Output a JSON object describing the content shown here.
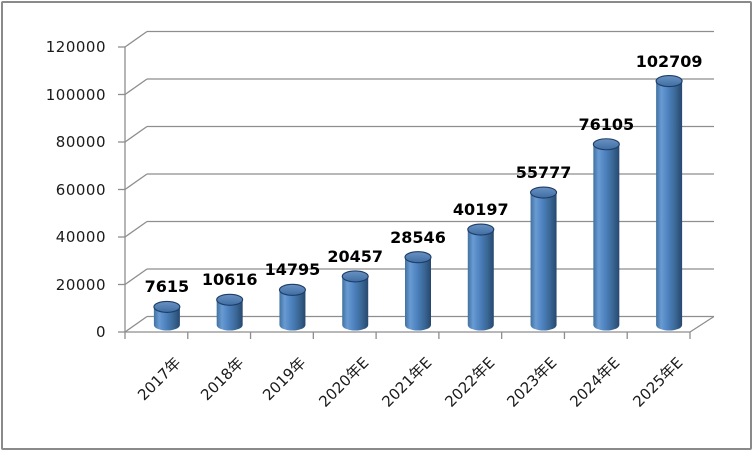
{
  "chart_data": {
    "type": "bar",
    "subtype": "3d-cylinder",
    "title": "",
    "xlabel": "",
    "ylabel": "",
    "categories": [
      "2017年",
      "2018年",
      "2019年",
      "2020年E",
      "2021年E",
      "2022年E",
      "2023年E",
      "2024年E",
      "2025年E"
    ],
    "values": [
      7615,
      10616,
      14795,
      20457,
      28546,
      40197,
      55777,
      76105,
      102709
    ],
    "data_labels": [
      "7615",
      "10616",
      "14795",
      "20457",
      "28546",
      "40197",
      "55777",
      "76105",
      "102709"
    ],
    "y_tick_labels": [
      "0",
      "20000",
      "40000",
      "60000",
      "80000",
      "100000",
      "120000"
    ],
    "y_ticks": [
      0,
      20000,
      40000,
      60000,
      80000,
      100000,
      120000
    ],
    "ylim": [
      0,
      120000
    ],
    "grid": true,
    "legend": false,
    "colors": {
      "bar_main": "#4f81bd",
      "bar_highlight": "#699bd3",
      "bar_shadow": "#27486f",
      "bar_top_fill": "#3f6da3",
      "bar_top_rim": "#1d3d66",
      "gridline": "#8e8e8e",
      "axis_text": "#1a1a1a",
      "data_label_text": "#000000",
      "frame_border": "#8a8a8a",
      "background": "#ffffff"
    }
  }
}
